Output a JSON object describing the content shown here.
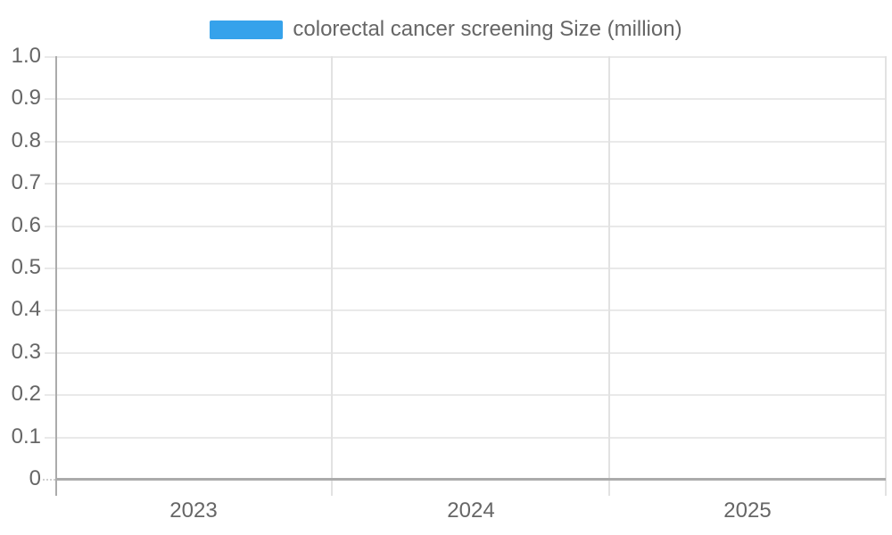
{
  "legend": {
    "label": "colorectal cancer screening Size (million)",
    "swatch_color": "#36a2eb"
  },
  "chart_data": {
    "type": "bar",
    "title": "",
    "xlabel": "",
    "ylabel": "",
    "categories": [
      "2023",
      "2024",
      "2025"
    ],
    "series": [
      {
        "name": "colorectal cancer screening Size (million)",
        "values": [
          null,
          null,
          null
        ]
      }
    ],
    "ylim": [
      0,
      1
    ],
    "y_ticks": [
      "1.0",
      "0.9",
      "0.8",
      "0.7",
      "0.6",
      "0.5",
      "0.4",
      "0.3",
      "0.2",
      "0.1",
      "0"
    ],
    "grid": true,
    "legend_position": "top"
  },
  "colors": {
    "accent": "#36a2eb",
    "grid_horizontal": "#e9e9e9",
    "grid_vertical": "#e2e2e2",
    "axis": "#ababab",
    "tick_text": "#666666",
    "legend_text": "#666666"
  }
}
